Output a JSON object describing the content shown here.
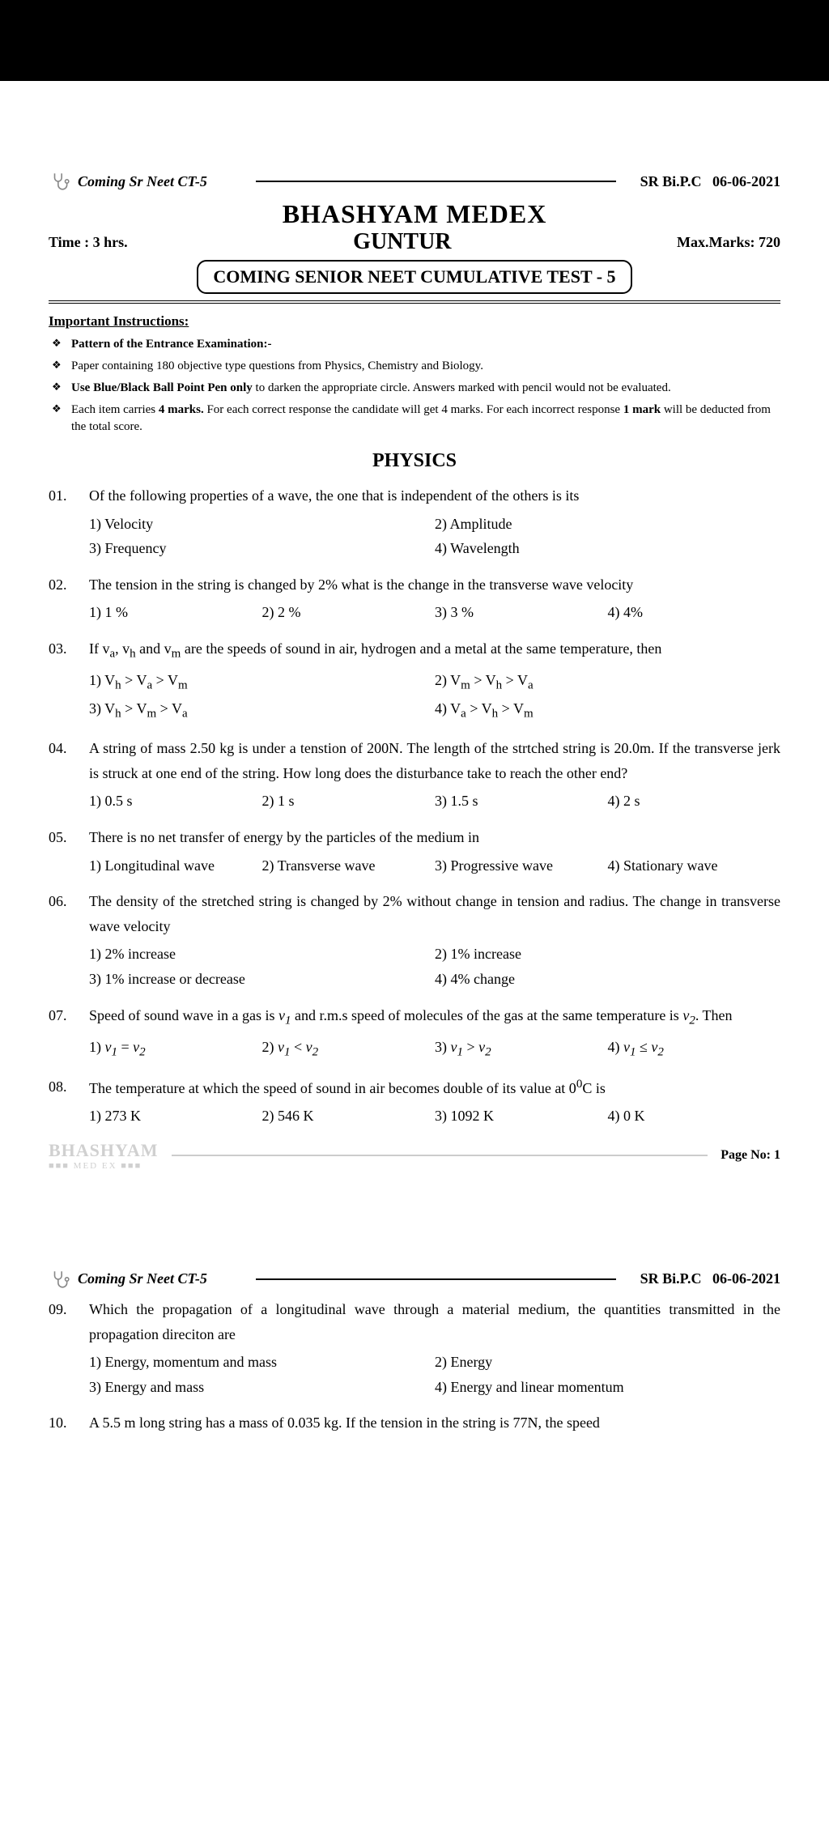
{
  "header": {
    "left": "Coming Sr Neet CT-5",
    "right_code": "SR Bi.P.C",
    "right_date": "06-06-2021",
    "title": "BHASHYAM MEDEX",
    "subtitle": "GUNTUR",
    "time": "Time : 3 hrs.",
    "marks": "Max.Marks: 720",
    "test_title": "COMING SENIOR NEET CUMULATIVE TEST - 5"
  },
  "instructions": {
    "title": "Important Instructions:",
    "items": [
      {
        "bold": "Pattern of the Entrance Examination:-",
        "rest": ""
      },
      {
        "bold": "",
        "rest": "Paper containing 180 objective type questions from Physics, Chemistry and Biology."
      },
      {
        "bold": "Use Blue/Black Ball Point Pen only",
        "rest": " to darken the appropriate circle. Answers marked with pencil would not be evaluated."
      },
      {
        "bold": "",
        "rest_pre": "Each item carries ",
        "bold_mid1": "4 marks.",
        "rest_mid": " For each correct response the candidate will get 4 marks. For each incorrect response ",
        "bold_mid2": "1 mark",
        "rest_post": " will be deducted from the total score."
      }
    ]
  },
  "section": "PHYSICS",
  "questions": [
    {
      "num": "01.",
      "text": "Of the following properties of a wave, the one that is independent of the others is its",
      "cols": 2,
      "opts": [
        "1) Velocity",
        "2) Amplitude",
        "3) Frequency",
        "4) Wavelength"
      ]
    },
    {
      "num": "02.",
      "text": "The tension in the string is changed by 2% what is the change in the transverse wave velocity",
      "cols": 4,
      "opts": [
        "1) 1 %",
        "2) 2 %",
        "3) 3 %",
        "4) 4%"
      ]
    },
    {
      "num": "03.",
      "text_html": "If v<sub>a</sub>, v<sub>h</sub> and v<sub>m</sub> are the speeds of sound in air, hydrogen and a metal at the same temperature, then",
      "cols": 2,
      "opts_html": [
        "1) V<sub>h</sub> > V<sub>a</sub> > V<sub>m</sub>",
        "2) V<sub>m</sub> > V<sub>h</sub> > V<sub>a</sub>",
        "3) V<sub>h</sub> > V<sub>m</sub> > V<sub>a</sub>",
        "4) V<sub>a</sub> > V<sub>h</sub> > V<sub>m</sub>"
      ]
    },
    {
      "num": "04.",
      "text": "A string of mass 2.50 kg is under a tenstion of 200N. The length of the strtched string is 20.0m. If the transverse jerk is struck at one end of the string. How long does the disturbance take to reach the other end?",
      "cols": 4,
      "opts": [
        "1) 0.5 s",
        "2) 1 s",
        "3) 1.5 s",
        "4) 2 s"
      ]
    },
    {
      "num": "05.",
      "text": "There is no net transfer of energy by the particles of the medium in",
      "cols": 4,
      "opts": [
        "1) Longitudinal wave",
        "2) Transverse wave",
        "3) Progressive wave",
        "4) Stationary wave"
      ]
    },
    {
      "num": "06.",
      "text": "The density of the stretched string is changed by 2% without change in tension and radius. The change in transverse wave velocity",
      "cols": 2,
      "opts": [
        "1) 2% increase",
        "2) 1% increase",
        "3) 1% increase or decrease",
        "4) 4% change"
      ]
    },
    {
      "num": "07.",
      "text_html": "Speed of sound wave in a gas is <i>v<sub>1</sub></i> and r.m.s speed of molecules of the gas at the same temperature is <i>v<sub>2</sub></i>. Then",
      "cols": 4,
      "opts_html": [
        "1) <i>v<sub>1</sub></i> = <i>v<sub>2</sub></i>",
        "2) <i>v<sub>1</sub></i> &lt; <i>v<sub>2</sub></i>",
        "3) <i>v<sub>1</sub></i> &gt; <i>v<sub>2</sub></i>",
        "4) <i>v<sub>1</sub></i> ≤ <i>v<sub>2</sub></i>"
      ]
    },
    {
      "num": "08.",
      "text_html": "The temperature at which the speed of sound in air becomes double of its value at 0<sup>0</sup>C is",
      "cols": 4,
      "opts": [
        "1) 273 K",
        "2) 546 K",
        "3) 1092 K",
        "4) 0 K"
      ]
    }
  ],
  "footer": {
    "watermark": "BHASHYAM",
    "watermark_sub": "■■■ MED EX ■■■",
    "page_no": "Page No: 1"
  },
  "page2": {
    "questions": [
      {
        "num": "09.",
        "text": "Which the propagation of a longitudinal wave through a material medium, the quantities transmitted in the propagation direciton are",
        "cols": 2,
        "opts": [
          "1) Energy, momentum and mass",
          "2) Energy",
          "3) Energy and mass",
          "4) Energy and linear momentum"
        ]
      },
      {
        "num": "10.",
        "text": "A 5.5 m long string has a mass of 0.035 kg. If the tension in the string is 77N, the speed",
        "cols": 4,
        "opts": []
      }
    ]
  }
}
